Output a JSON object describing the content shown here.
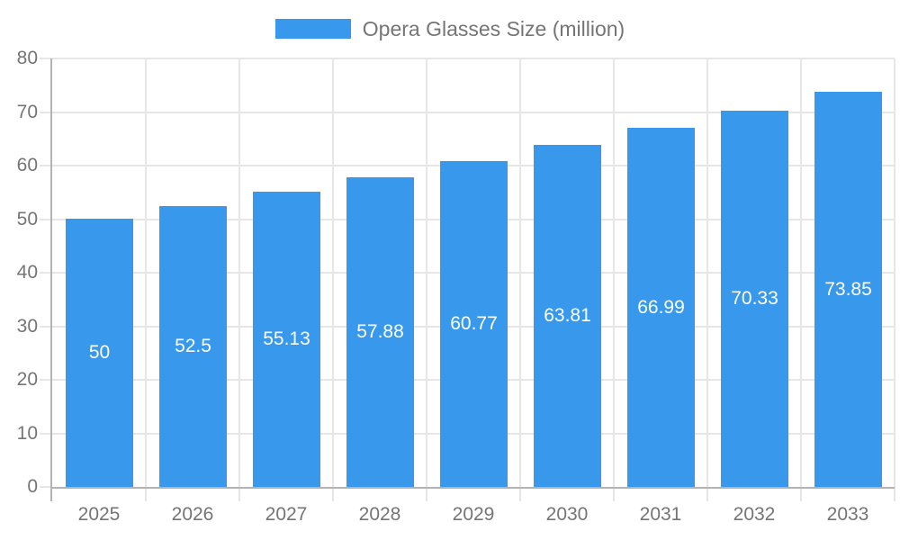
{
  "chart_data": {
    "type": "bar",
    "title": "Opera Glasses Size (million)",
    "categories": [
      "2025",
      "2026",
      "2027",
      "2028",
      "2029",
      "2030",
      "2031",
      "2032",
      "2033"
    ],
    "values": [
      50,
      52.5,
      55.13,
      57.88,
      60.77,
      63.81,
      66.99,
      70.33,
      73.85
    ],
    "value_labels": [
      "50",
      "52.5",
      "55.13",
      "57.88",
      "60.77",
      "63.81",
      "66.99",
      "70.33",
      "73.85"
    ],
    "ylim": [
      0,
      80
    ],
    "ytick_step": 10,
    "ytick_labels": [
      "0",
      "10",
      "20",
      "30",
      "40",
      "50",
      "60",
      "70",
      "80"
    ],
    "grid": true,
    "legend_position": "top",
    "xlabel": "",
    "ylabel": ""
  },
  "style": {
    "bar_color": "#3899EC",
    "value_label_color": "#ffffff",
    "axis_text_color": "#757575",
    "grid_color": "#e6e6e6",
    "axis_line_color": "#b3b3b3",
    "background": "#ffffff"
  }
}
